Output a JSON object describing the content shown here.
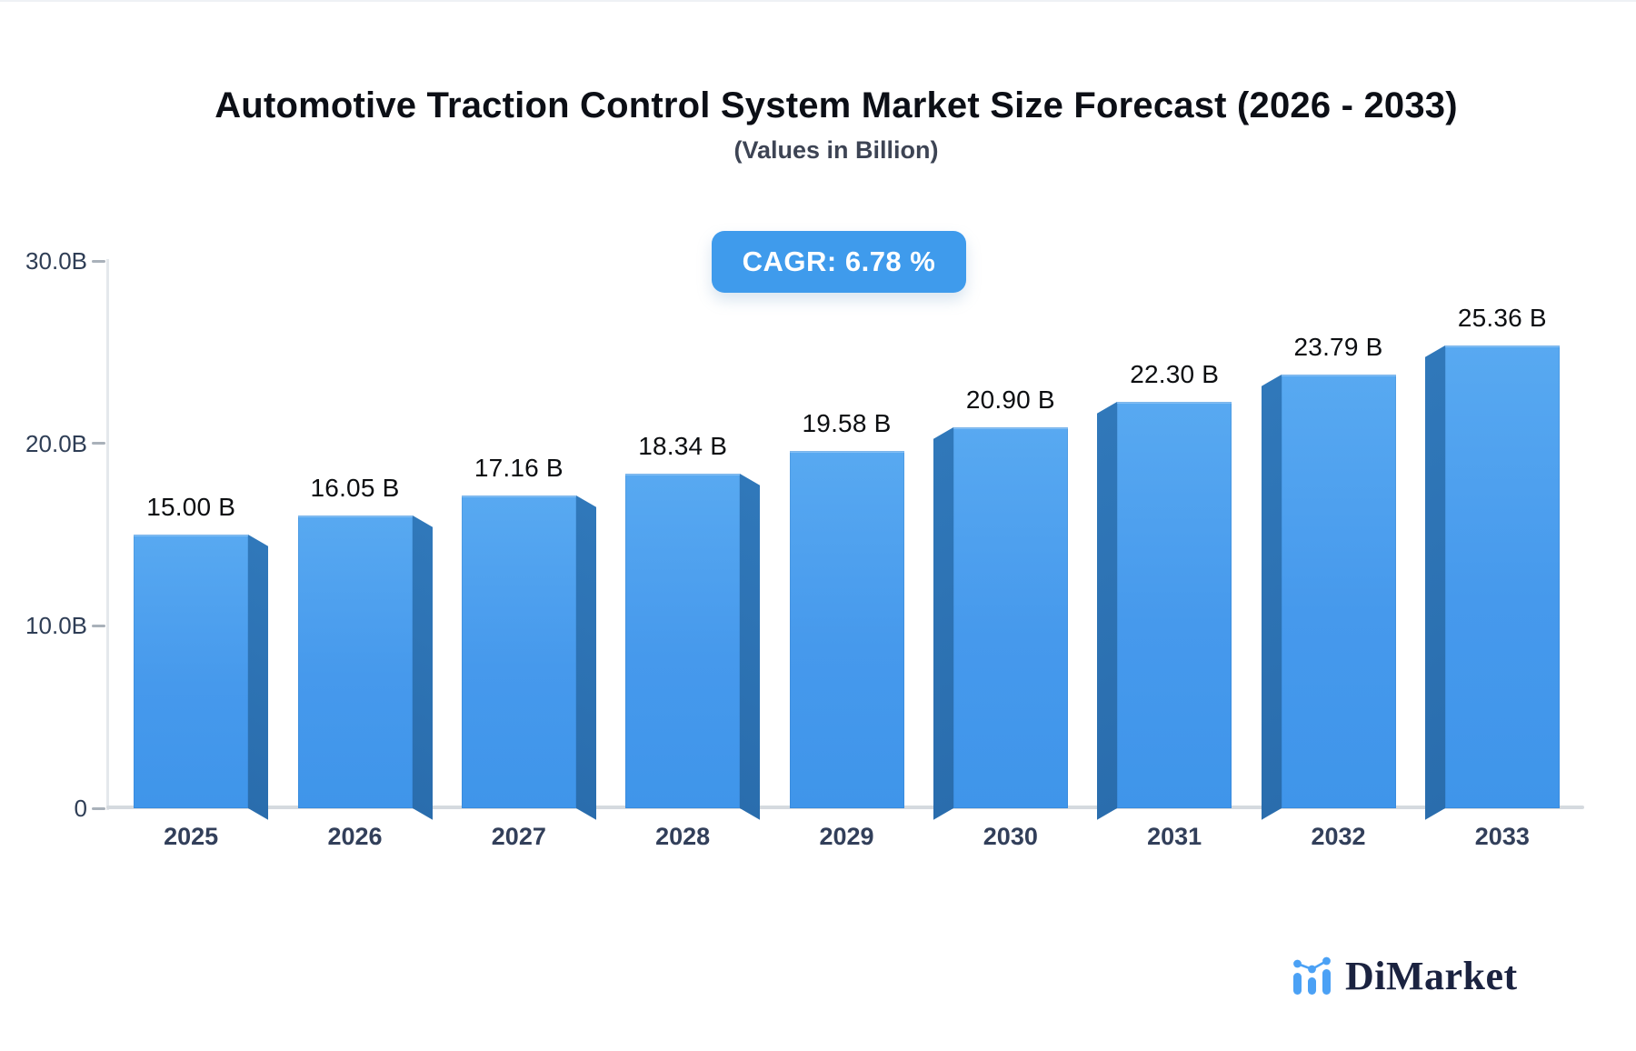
{
  "title": "Automotive Traction Control System Market Size Forecast (2026 - 2033)",
  "subtitle": "(Values in Billion)",
  "badge": {
    "label": "CAGR: 6.78 %"
  },
  "chart_data": {
    "type": "bar",
    "categories": [
      "2025",
      "2026",
      "2027",
      "2028",
      "2029",
      "2030",
      "2031",
      "2032",
      "2033"
    ],
    "values": [
      15.0,
      16.05,
      17.16,
      18.34,
      19.58,
      20.9,
      22.3,
      23.79,
      25.36
    ],
    "value_labels": [
      "15.00 B",
      "16.05 B",
      "17.16 B",
      "18.34 B",
      "19.58 B",
      "20.90 B",
      "22.30 B",
      "23.79 B",
      "25.36 B"
    ],
    "yticks": [
      {
        "value": 0,
        "label": "0"
      },
      {
        "value": 10,
        "label": "10.0B"
      },
      {
        "value": 20,
        "label": "20.0B"
      },
      {
        "value": 30,
        "label": "30.0B"
      }
    ],
    "ylim": [
      0,
      30
    ],
    "xlabel": "",
    "ylabel": "",
    "grid": false,
    "legend": false,
    "bar_style": "3d-extruded",
    "colors": {
      "bar_face": "#4699ec",
      "bar_side": "#2e76b8",
      "badge_bg": "#3f9bec",
      "badge_text": "#ffffff",
      "baseline": "#d5dadf",
      "tick_text": "#2e3d55",
      "year_text": "#323f5a",
      "value_text": "#0c0e11",
      "title_text": "#0c0f16"
    }
  },
  "logo": {
    "text": "DiMarket",
    "icon": "bar-chart-logo-icon",
    "text_color": "#1b2340",
    "icon_color": "#4ba1f5"
  }
}
